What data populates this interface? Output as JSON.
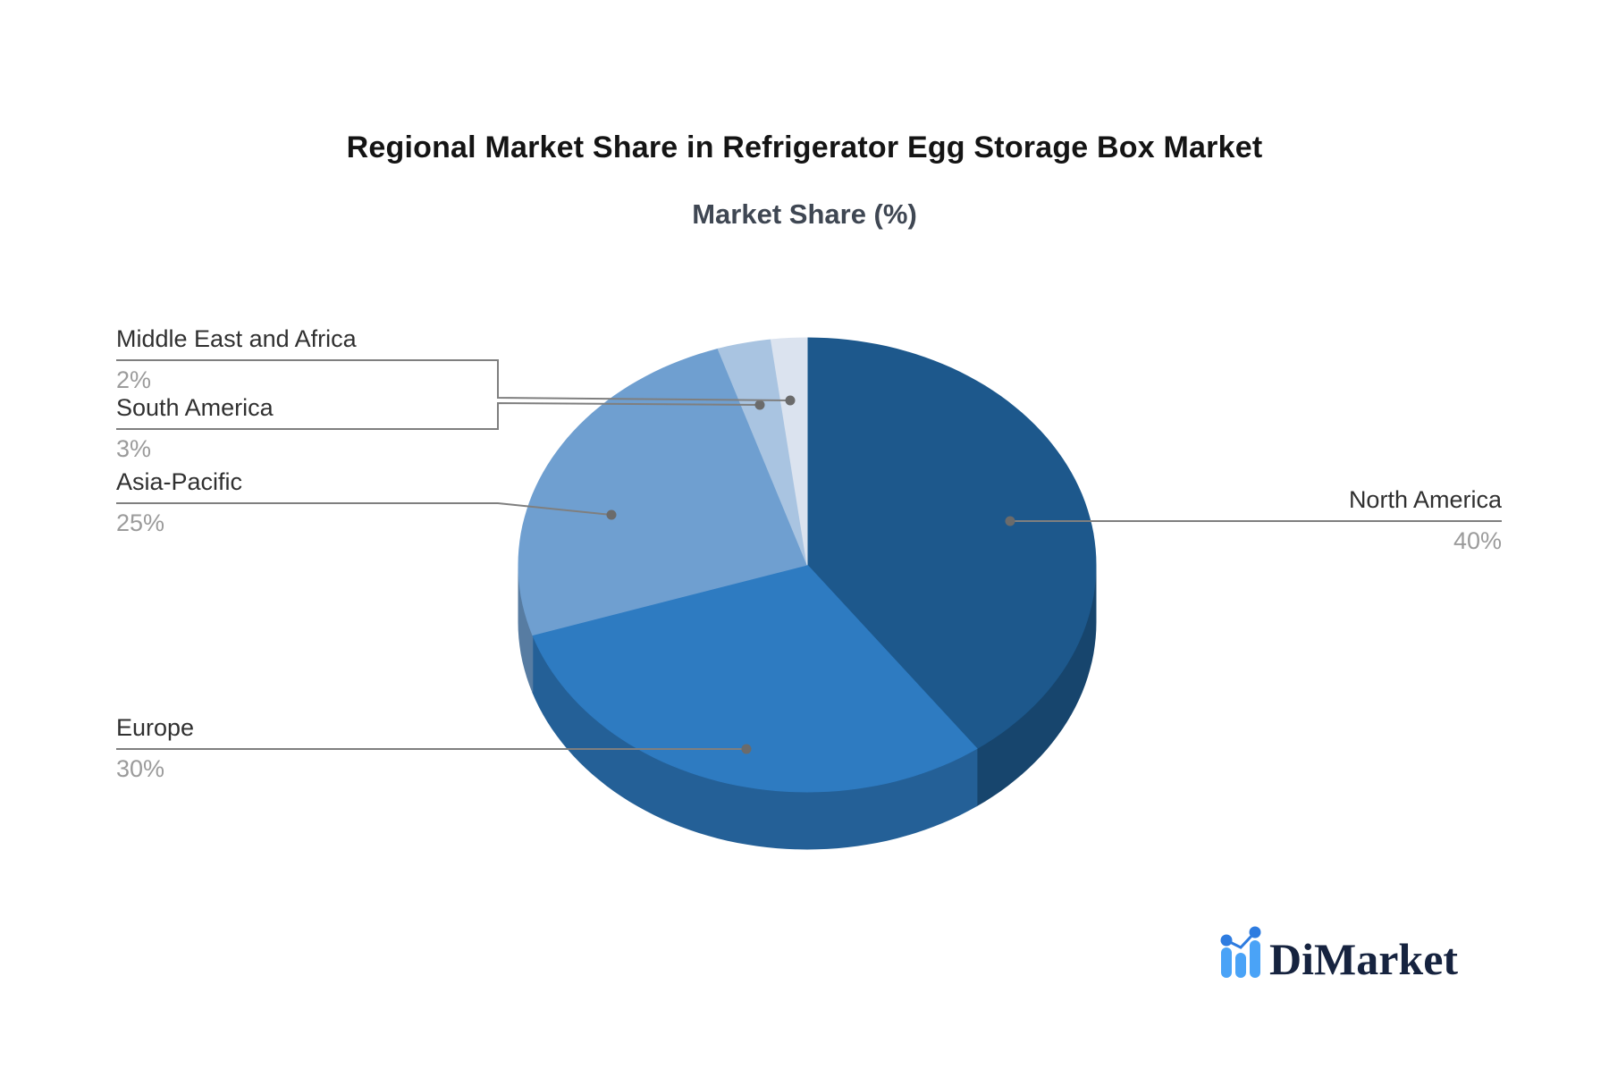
{
  "chart_data": {
    "type": "pie",
    "style": "3d",
    "title": "Regional Market Share in Refrigerator Egg Storage Box Market",
    "subtitle": "Market Share (%)",
    "unit": "%",
    "start_angle": "12-oclock-clockwise",
    "legend_position": "callout-labels",
    "slices": [
      {
        "label": "North America",
        "value": 40,
        "pct_label": "40%",
        "color": "#1d588c"
      },
      {
        "label": "Europe",
        "value": 30,
        "pct_label": "30%",
        "color": "#2e7bc1"
      },
      {
        "label": "Asia-Pacific",
        "value": 25,
        "pct_label": "25%",
        "color": "#6f9fd0"
      },
      {
        "label": "South America",
        "value": 3,
        "pct_label": "3%",
        "color": "#a9c4e1"
      },
      {
        "label": "Middle East and Africa",
        "value": 2,
        "pct_label": "2%",
        "color": "#dbe3ef"
      }
    ]
  },
  "branding": {
    "name": "DiMarket",
    "icon": "bar-chart-logo-icon",
    "text_color": "#16233f",
    "icon_bar_color": "#4aa3f7",
    "icon_dot_color": "#2e7ce0"
  },
  "colors": {
    "title": "#141414",
    "subtitle": "#3f4753",
    "label_text": "#303030",
    "percent_text": "#9b9b9b",
    "leader_line": "#7f7f7f",
    "leader_dot": "#6b6b6b",
    "background": "#ffffff"
  }
}
